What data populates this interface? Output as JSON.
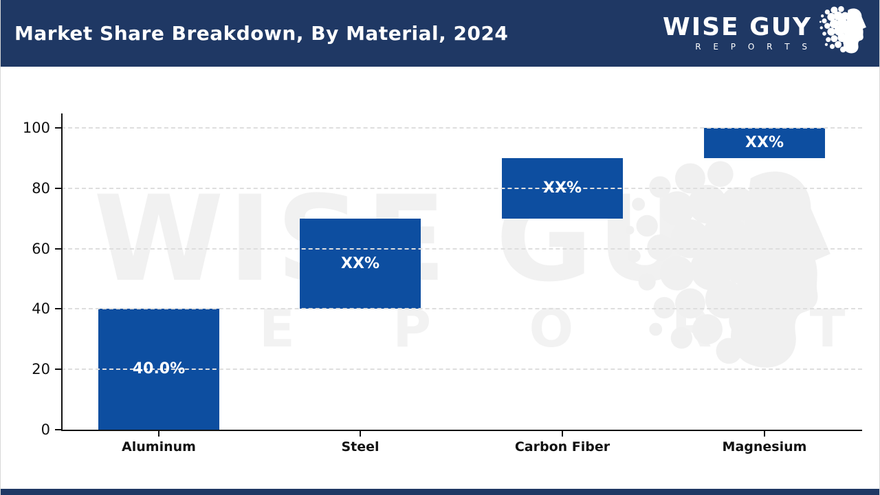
{
  "header": {
    "title": "Market Share Breakdown, By Material, 2024",
    "logo": {
      "line1": "WISE GUY",
      "line2": "R E P O R T S"
    }
  },
  "watermark": {
    "line1": "WISE GUY",
    "line2": "R E P O R T S"
  },
  "chart_data": {
    "type": "bar",
    "subtype": "waterfall",
    "title": "Market Share Breakdown, By Material, 2024",
    "categories": [
      "Aluminum",
      "Steel",
      "Carbon Fiber",
      "Magnesium"
    ],
    "segments": [
      {
        "category": "Aluminum",
        "start": 0,
        "end": 40,
        "value": 40,
        "label": "40.0%"
      },
      {
        "category": "Steel",
        "start": 40,
        "end": 70,
        "value": 30,
        "label": "XX%"
      },
      {
        "category": "Carbon Fiber",
        "start": 70,
        "end": 90,
        "value": 20,
        "label": "XX%"
      },
      {
        "category": "Magnesium",
        "start": 90,
        "end": 100,
        "value": 10,
        "label": "XX%"
      }
    ],
    "xlabel": "",
    "ylabel": "",
    "ylim": [
      0,
      100
    ],
    "yticks": [
      0,
      20,
      40,
      60,
      80,
      100
    ],
    "grid": "horizontal-dashed",
    "legend": "none",
    "bar_color": "#0d4ea0",
    "bar_label_color": "#ffffff"
  },
  "colors": {
    "header_bg": "#1f3864",
    "footer_bg": "#1f3864",
    "bar_blue": "#0d4ea0",
    "watermark_gray": "#f1f1f1",
    "gridline_gray": "#dedede",
    "axis_black": "#111111"
  }
}
